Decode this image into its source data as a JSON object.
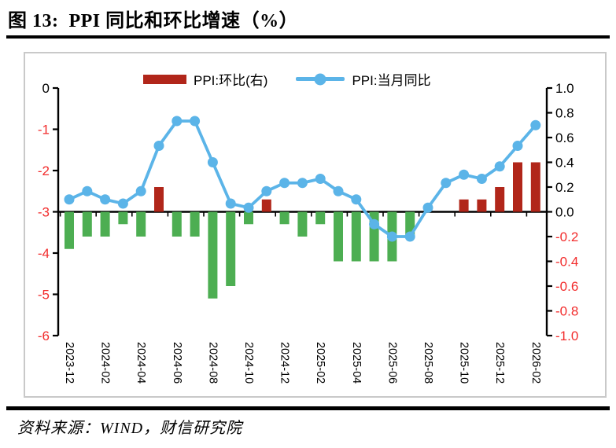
{
  "header": {
    "title": "图 13:  PPI 同比和环比增速（%）"
  },
  "legend": {
    "items": [
      {
        "label": "PPI:环比(右)",
        "marker": "bar-swatch"
      },
      {
        "label": "PPI:当月同比",
        "marker": "line-dot-swatch"
      }
    ]
  },
  "footer": {
    "source": "资料来源：WIND，财信研究院"
  },
  "colors": {
    "bar_positive": "#b1261a",
    "bar_negative": "#4dae52",
    "line": "#5bb4e8",
    "axis": "#000000",
    "tick_default": "#000000",
    "tick_negative": "#f22c2c"
  },
  "chart_data": {
    "type": "bar",
    "subtype": "bar+line dual-axis combo",
    "title": "PPI 同比和环比增速（%）",
    "categories": [
      "2023-12",
      "2024-01",
      "2024-02",
      "2024-03",
      "2024-04",
      "2024-05",
      "2024-06",
      "2024-07",
      "2024-08",
      "2024-09",
      "2024-10",
      "2024-11",
      "2024-12",
      "2025-01",
      "2025-02",
      "2025-03",
      "2025-04",
      "2025-05",
      "2025-06",
      "2025-07",
      "2025-08",
      "2025-09",
      "2025-10",
      "2025-11",
      "2025-12",
      "2026-01",
      "2026-02"
    ],
    "series": [
      {
        "name": "PPI:环比(右)",
        "type": "bar",
        "axis": "right",
        "values": [
          -0.3,
          -0.2,
          -0.2,
          -0.1,
          -0.2,
          0.2,
          -0.2,
          -0.2,
          -0.7,
          -0.6,
          -0.1,
          0.1,
          -0.1,
          -0.2,
          -0.1,
          -0.4,
          -0.4,
          -0.4,
          -0.4,
          -0.2,
          0.0,
          0.0,
          0.1,
          0.1,
          0.2,
          0.4,
          0.4
        ]
      },
      {
        "name": "PPI:当月同比",
        "type": "line",
        "axis": "left",
        "values": [
          -2.7,
          -2.5,
          -2.7,
          -2.8,
          -2.5,
          -1.4,
          -0.8,
          -0.8,
          -1.8,
          -2.8,
          -2.9,
          -2.5,
          -2.3,
          -2.3,
          -2.2,
          -2.5,
          -2.7,
          -3.3,
          -3.6,
          -3.6,
          -2.9,
          -2.3,
          -2.1,
          -2.2,
          -1.9,
          -1.4,
          -0.9
        ]
      }
    ],
    "left_axis": {
      "range": [
        0,
        -6
      ],
      "tick_labels": [
        "0",
        "-1",
        "-2",
        "-3",
        "-4",
        "-5",
        "-6"
      ]
    },
    "right_axis": {
      "range": [
        1,
        -1
      ],
      "tick_labels": [
        "1.0",
        "0.8",
        "0.6",
        "0.4",
        "0.2",
        "0.0",
        "-0.2",
        "-0.4",
        "-0.6",
        "-0.8",
        "-1.0"
      ]
    },
    "x_tick_labels": [
      "2023-12",
      "2024-02",
      "2024-04",
      "2024-06",
      "2024-08",
      "2024-10",
      "2024-12",
      "2025-02",
      "2025-04",
      "2025-06",
      "2025-08",
      "2025-10",
      "2025-12",
      "2026-02"
    ],
    "x_tick_step": 2,
    "grid": false,
    "legend_position": "top-center"
  }
}
